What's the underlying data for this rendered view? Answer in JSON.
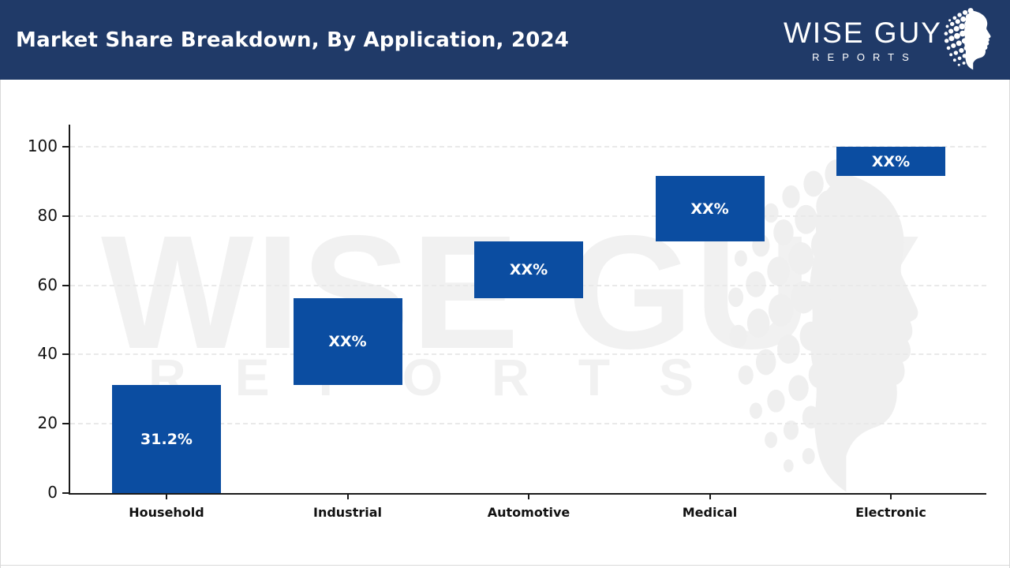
{
  "header": {
    "title": "Market Share Breakdown, By Application, 2024",
    "bg_color": "#203a68",
    "logo": {
      "line1": "WISE GUY",
      "line2": "REPORTS"
    }
  },
  "watermark": {
    "line1": "WISE GUY",
    "line2": "REPORTS"
  },
  "colors": {
    "bar": "#0b4da1",
    "bar_label": "#ffffff",
    "axis": "#1a1a1a",
    "grid": "#e9e9e9",
    "header_bg": "#203a68",
    "watermark": "#f1f1f1"
  },
  "chart_data": {
    "type": "bar",
    "variant": "waterfall",
    "title": "Market Share Breakdown, By Application, 2024",
    "xlabel": "",
    "ylabel": "",
    "ylim": [
      0,
      100
    ],
    "yticks": [
      0,
      20,
      40,
      60,
      80,
      100
    ],
    "grid": "horizontal-dashed",
    "legend": false,
    "categories": [
      "Household",
      "Industrial",
      "Automotive",
      "Medical",
      "Electronic"
    ],
    "segments": [
      {
        "category": "Household",
        "start": 0,
        "end": 31.2,
        "value": 31.2,
        "label": "31.2%"
      },
      {
        "category": "Industrial",
        "start": 31.2,
        "end": 56.2,
        "value": 25.0,
        "label": "XX%"
      },
      {
        "category": "Automotive",
        "start": 56.2,
        "end": 72.6,
        "value": 16.4,
        "label": "XX%"
      },
      {
        "category": "Medical",
        "start": 72.6,
        "end": 91.5,
        "value": 18.9,
        "label": "XX%"
      },
      {
        "category": "Electronic",
        "start": 91.5,
        "end": 100,
        "value": 8.5,
        "label": "XX%"
      }
    ]
  }
}
